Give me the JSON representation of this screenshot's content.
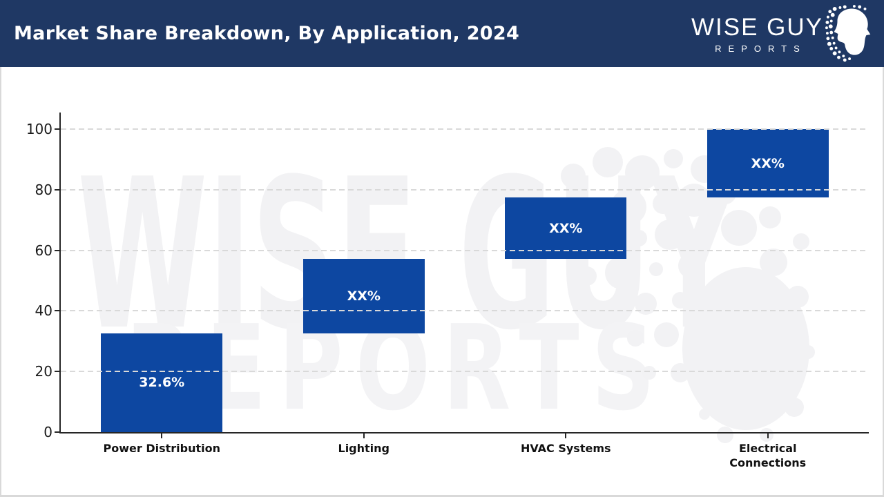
{
  "header": {
    "title": "Market Share Breakdown, By Application, 2024",
    "logo": {
      "name": "WISE GUY",
      "subtitle": "REPORTS"
    }
  },
  "watermark": {
    "line1": "WISE GUY",
    "line2": "REPORTS"
  },
  "chart_data": {
    "type": "bar",
    "subtype": "waterfall",
    "title": "Market Share Breakdown, By Application, 2024",
    "categories": [
      "Power Distribution",
      "Lighting",
      "HVAC Systems",
      "Electrical Connections"
    ],
    "category_lines": [
      [
        "Power Distribution"
      ],
      [
        "Lighting"
      ],
      [
        "HVAC Systems"
      ],
      [
        "Electrical",
        "Connections"
      ]
    ],
    "series": [
      {
        "name": "Market share (%)",
        "starts": [
          0,
          32.6,
          57.2,
          77.4
        ],
        "ends": [
          32.6,
          57.2,
          77.4,
          100
        ],
        "labels": [
          "32.6%",
          "XX%",
          "XX%",
          "XX%"
        ]
      }
    ],
    "xlabel": "",
    "ylabel": "",
    "ylim": [
      0,
      100
    ],
    "yticks": [
      0,
      20,
      40,
      60,
      80,
      100
    ],
    "grid": "horizontal-dashed",
    "legend": "none",
    "colors": {
      "bar": "#0d47a1",
      "bar_label": "#ffffff",
      "grid": "#d9d9d9",
      "axis": "#262626",
      "header_bg": "#1f3864",
      "header_text": "#ffffff",
      "watermark": "#f2f2f4"
    }
  }
}
